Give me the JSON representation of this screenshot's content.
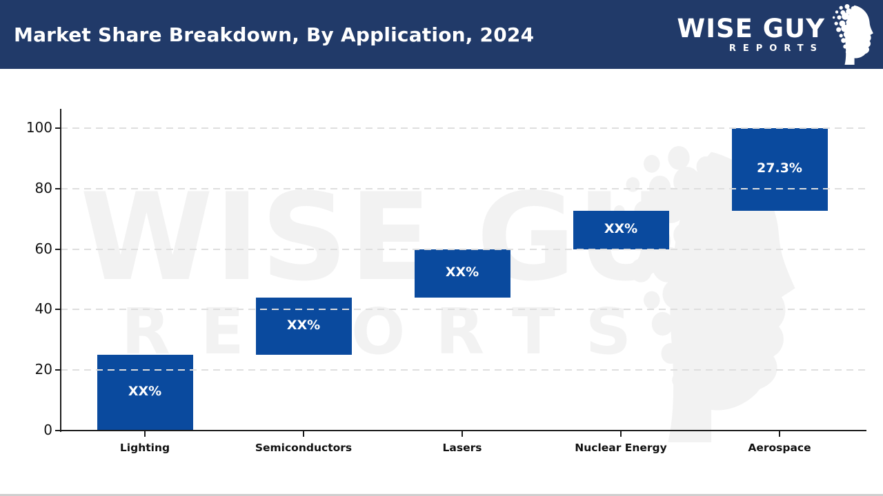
{
  "header": {
    "title": "Market Share Breakdown, By Application, 2024",
    "logo": {
      "line1": "WISE GUY",
      "line2": "REPORTS"
    }
  },
  "watermark": {
    "line1": "WISE GUY",
    "line2": "REPORTS"
  },
  "colors": {
    "header_bg": "#213a69",
    "bar": "#0a4a9e",
    "grid": "#dedede",
    "axis": "#1a1a1a",
    "watermark": "#f2f2f2",
    "title_text": "#ffffff",
    "bar_label_text": "#ffffff"
  },
  "chart_data": {
    "type": "bar",
    "subtype": "waterfall",
    "title": "Market Share Breakdown, By Application, 2024",
    "categories": [
      "Lighting",
      "Semiconductors",
      "Lasers",
      "Nuclear Energy",
      "Aerospace"
    ],
    "segments": [
      {
        "category": "Lighting",
        "start": 0,
        "end": 25,
        "value": 25,
        "label": "XX%"
      },
      {
        "category": "Semiconductors",
        "start": 25,
        "end": 44,
        "value": 19,
        "label": "XX%"
      },
      {
        "category": "Lasers",
        "start": 44,
        "end": 60,
        "value": 16,
        "label": "XX%"
      },
      {
        "category": "Nuclear Energy",
        "start": 60,
        "end": 72.7,
        "value": 12.7,
        "label": "XX%"
      },
      {
        "category": "Aerospace",
        "start": 72.7,
        "end": 100,
        "value": 27.3,
        "label": "27.3%"
      }
    ],
    "yticks": [
      0,
      20,
      40,
      60,
      80,
      100
    ],
    "ylim": [
      0,
      106
    ],
    "xlabel": "",
    "ylabel": "",
    "grid": true,
    "grid_style": "dashed",
    "legend": "none",
    "bar_color": "#0a4a9e"
  }
}
